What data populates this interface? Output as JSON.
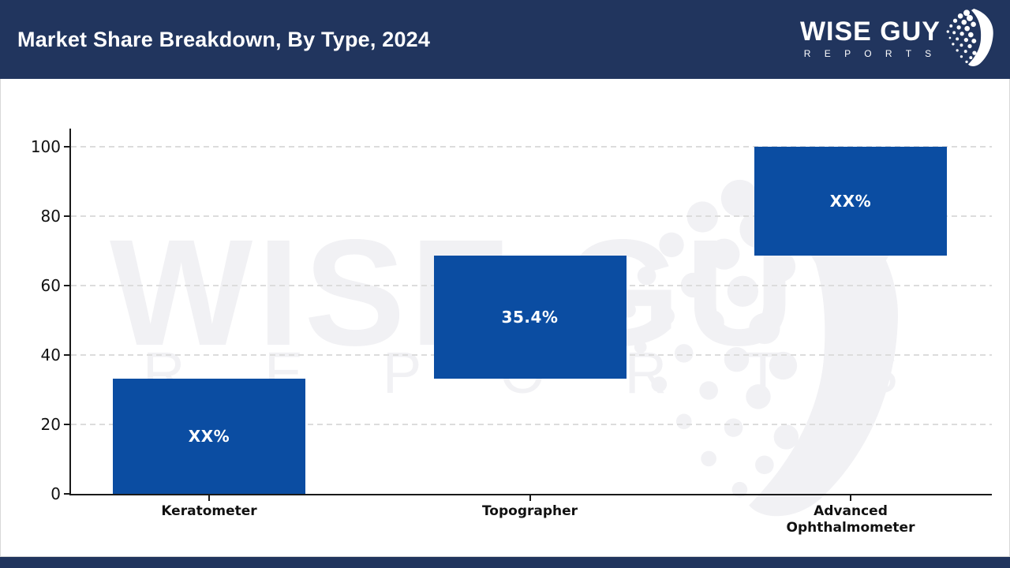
{
  "header": {
    "title": "Market Share Breakdown, By Type, 2024",
    "logo": {
      "line1": "WISE GUY",
      "line2": "R E P O R T S"
    }
  },
  "watermark": {
    "line1": "WISE GUY",
    "line2": "R E P O R T S"
  },
  "chart_data": {
    "type": "bar",
    "subtype": "floating-segment-bars",
    "title": "Market Share Breakdown, By Type, 2024",
    "categories": [
      "Keratometer",
      "Topographer",
      "Advanced Ophthalmometer"
    ],
    "segments": [
      {
        "category": "Keratometer",
        "start": 0,
        "end": 33.2,
        "value": 33.2,
        "label": "XX%"
      },
      {
        "category": "Topographer",
        "start": 33.2,
        "end": 68.6,
        "value": 35.4,
        "label": "35.4%"
      },
      {
        "category": "Advanced Ophthalmometer",
        "start": 68.6,
        "end": 100,
        "value": 31.4,
        "label": "XX%"
      }
    ],
    "xlabel": "",
    "ylabel": "",
    "ylim": [
      0,
      100
    ],
    "yticks": [
      0,
      20,
      40,
      60,
      80,
      100
    ],
    "grid": "dashed-horizontal",
    "legend": "none",
    "bar_color": "#0b4da2",
    "value_label_color": "#ffffff"
  },
  "colors": {
    "header_bg": "#21355e",
    "footer_bg": "#21355e",
    "bar": "#0b4da2",
    "grid": "#dcdcdc",
    "axis": "#1a1a1a",
    "watermark": "#f1f1f4"
  }
}
